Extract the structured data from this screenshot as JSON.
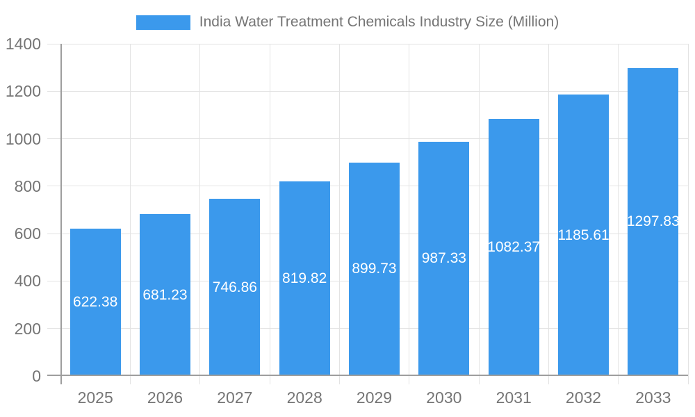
{
  "chart_data": {
    "type": "bar",
    "title": "India Water Treatment Chemicals Industry Size (Million)",
    "legend": {
      "label": "India Water Treatment Chemicals Industry Size (Million)",
      "position": "top"
    },
    "categories": [
      "2025",
      "2026",
      "2027",
      "2028",
      "2029",
      "2030",
      "2031",
      "2032",
      "2033"
    ],
    "series": [
      {
        "name": "India Water Treatment Chemicals Industry Size (Million)",
        "values": [
          622.38,
          681.23,
          746.86,
          819.82,
          899.73,
          987.33,
          1082.37,
          1185.61,
          1297.83
        ]
      }
    ],
    "bar_labels": [
      "622.38",
      "681.23",
      "746.86",
      "819.82",
      "899.73",
      "987.33",
      "1082.37",
      "1185.61",
      "1297.83"
    ],
    "xlabel": "",
    "ylabel": "",
    "ylim": [
      0,
      1400
    ],
    "yticks": [
      0,
      200,
      400,
      600,
      800,
      1000,
      1200,
      1400
    ],
    "grid": true,
    "legend_position": "top",
    "colors": {
      "bar": "#3B99EC",
      "axis_line": "#9e9e9e",
      "gridline": "#e3e3e3",
      "tick_label": "#757575",
      "bar_label": "#ffffff",
      "background": "#ffffff"
    }
  }
}
